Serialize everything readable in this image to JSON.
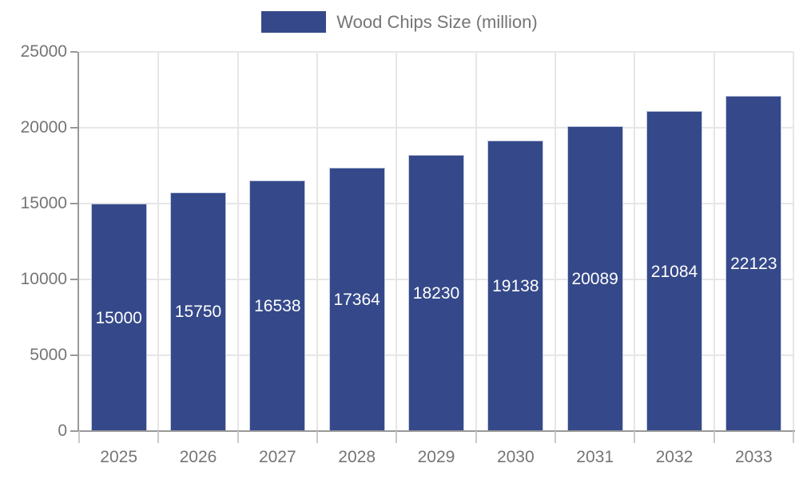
{
  "chart_data": {
    "type": "bar",
    "title": "",
    "categories": [
      "2025",
      "2026",
      "2027",
      "2028",
      "2029",
      "2030",
      "2031",
      "2032",
      "2033"
    ],
    "series": [
      {
        "name": "Wood Chips Size (million)",
        "values": [
          15000,
          15750,
          16538,
          17364,
          18230,
          19138,
          20089,
          21084,
          22123
        ]
      }
    ],
    "bar_value_labels": [
      "15000",
      "15750",
      "16538",
      "17364",
      "18230",
      "19138",
      "20089",
      "21084",
      "22123"
    ],
    "xlabel": "",
    "ylabel": "",
    "ylim": [
      0,
      25000
    ],
    "yticks": [
      0,
      5000,
      10000,
      15000,
      20000,
      25000
    ],
    "ytick_labels": [
      "0",
      "5000",
      "10000",
      "15000",
      "20000",
      "25000"
    ],
    "grid": true,
    "legend_position": "top-center",
    "colors": {
      "bar": "#35498a",
      "bar_value_text": "#ffffff",
      "axis_text": "#757575",
      "grid_line": "#e6e6e6",
      "axis_line": "#999999",
      "x_tick_line": "#c9c9c9"
    }
  }
}
